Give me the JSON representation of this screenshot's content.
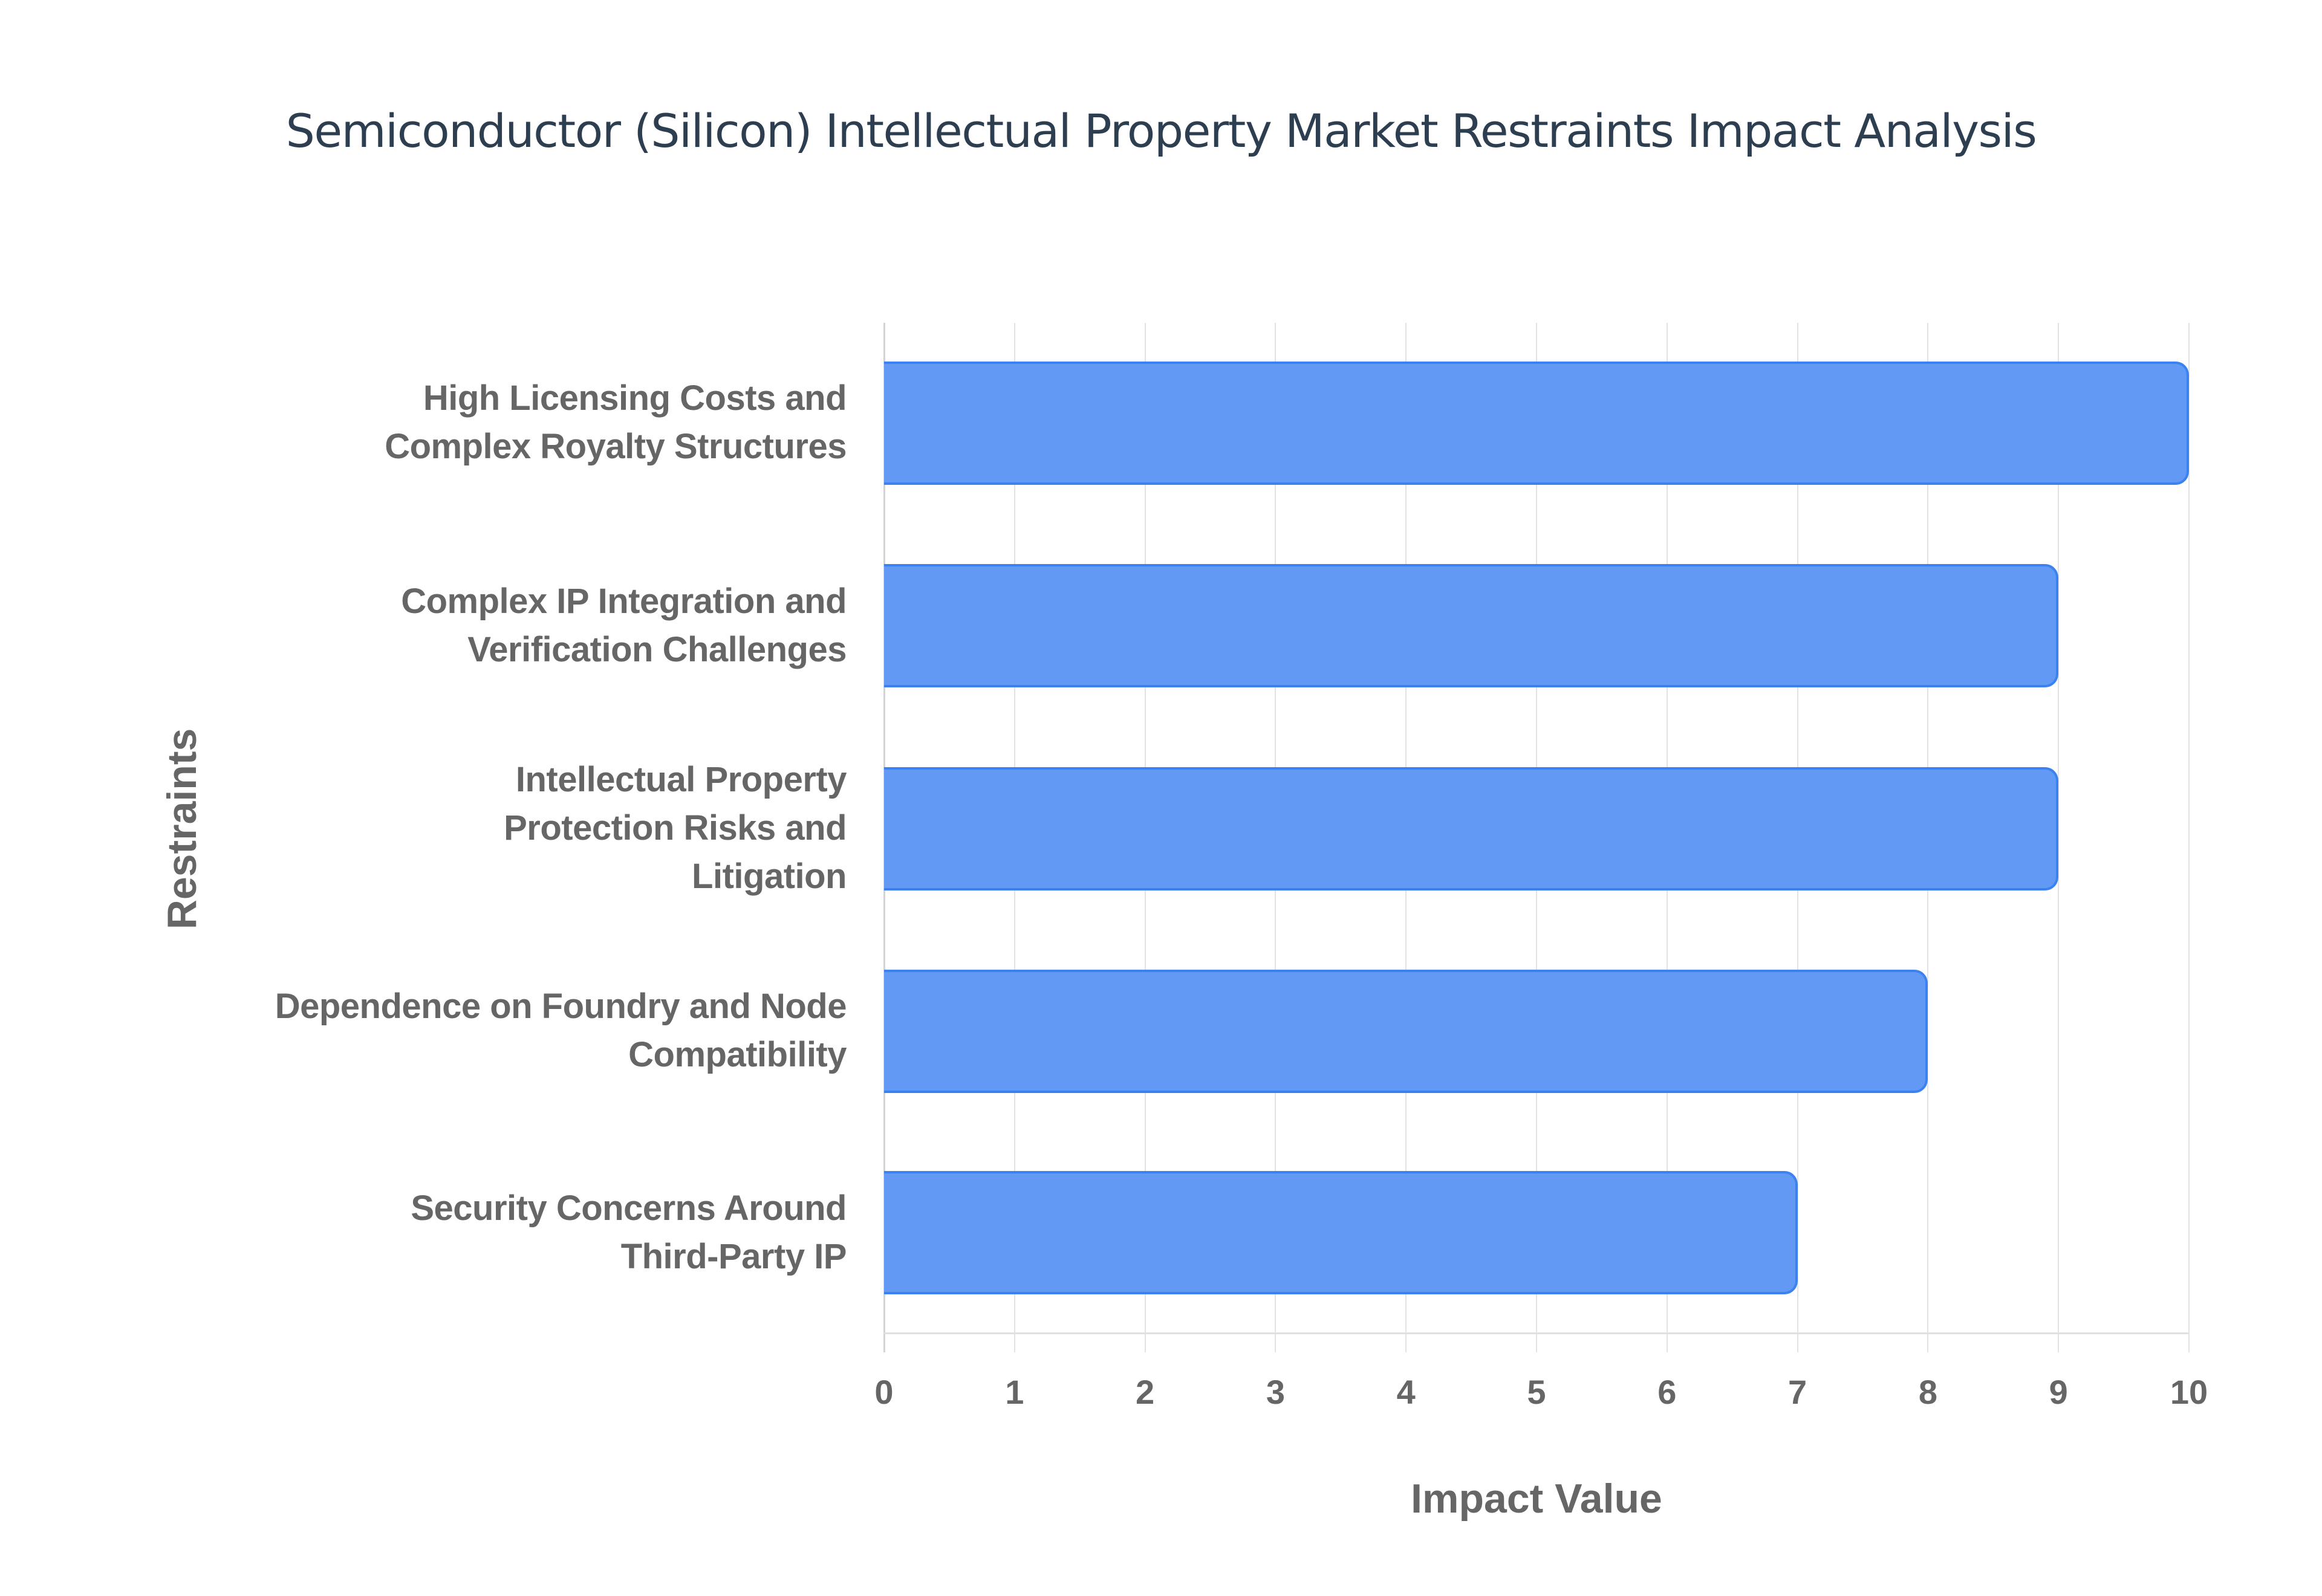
{
  "chart_data": {
    "type": "bar",
    "orientation": "horizontal",
    "title": "Semiconductor (Silicon) Intellectual Property Market Restraints Impact Analysis",
    "xlabel": "Impact Value",
    "ylabel": "Restraints",
    "xlim": [
      0,
      10
    ],
    "x_ticks": [
      "0",
      "1",
      "2",
      "3",
      "4",
      "5",
      "6",
      "7",
      "8",
      "9",
      "10"
    ],
    "grid": true,
    "legend": null,
    "categories": [
      "High Licensing Costs and Complex Royalty Structures",
      "Complex IP Integration and Verification Challenges",
      "Intellectual Property Protection Risks and Litigation",
      "Dependence on Foundry and Node Compatibility",
      "Security Concerns Around Third-Party IP"
    ],
    "values": [
      10,
      9,
      9,
      8,
      7
    ],
    "bar_color": "#6199f4",
    "bar_border_color": "#3b82f0"
  },
  "labels": [
    [
      "High Licensing Costs and",
      "Complex Royalty Structures"
    ],
    [
      "Complex IP Integration and",
      "Verification Challenges"
    ],
    [
      "Intellectual Property",
      "Protection Risks and",
      "Litigation"
    ],
    [
      "Dependence on Foundry and Node",
      "Compatibility"
    ],
    [
      "Security Concerns Around",
      "Third-Party IP"
    ]
  ]
}
